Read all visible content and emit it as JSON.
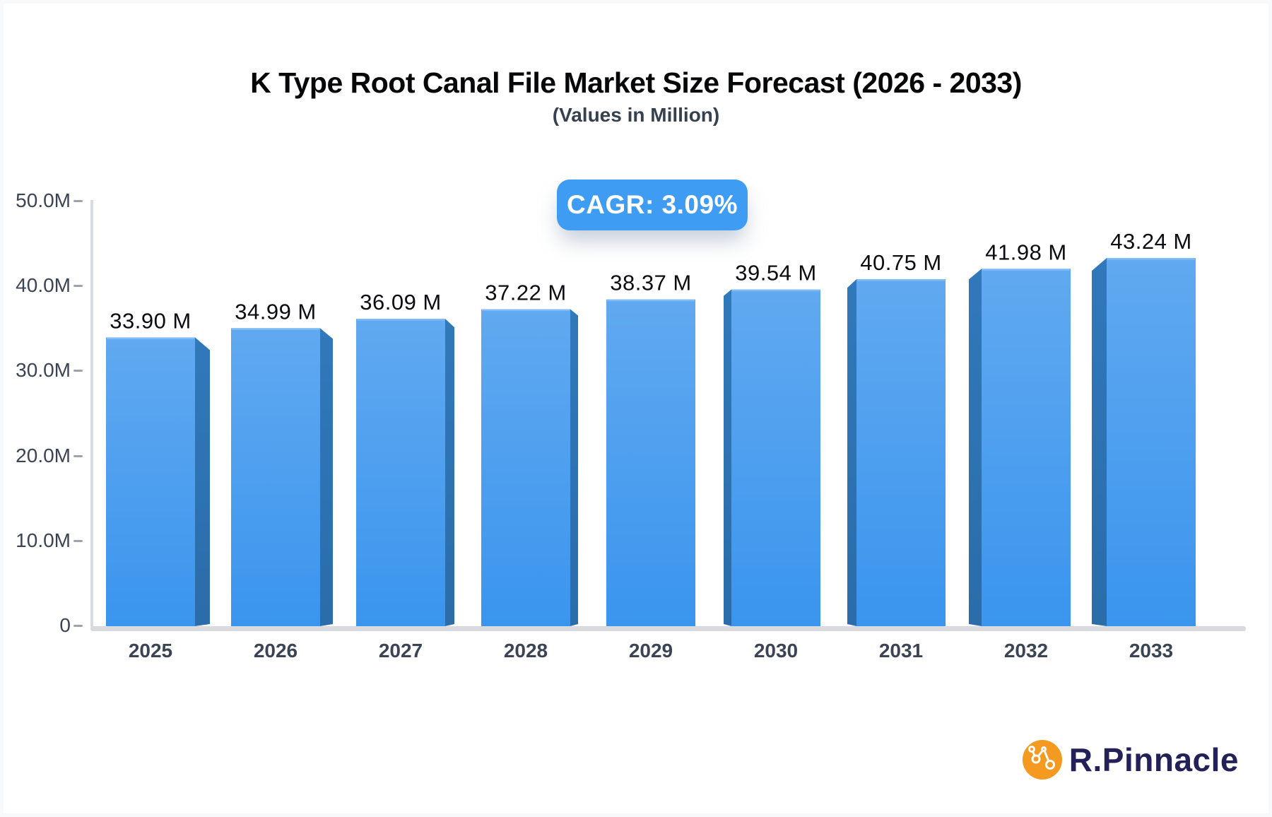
{
  "header": {
    "title": "K Type Root Canal File Market Size Forecast (2026 - 2033)",
    "subtitle": "(Values in Million)"
  },
  "badge": {
    "label": "CAGR: 3.09%",
    "bg_color": "#3e9cf2",
    "text_color": "#ffffff"
  },
  "chart_data": {
    "type": "bar",
    "title": "K Type Root Canal File Market Size Forecast (2026 - 2033)",
    "subtitle": "(Values in Million)",
    "categories": [
      "2025",
      "2026",
      "2027",
      "2028",
      "2029",
      "2030",
      "2031",
      "2032",
      "2033"
    ],
    "values": [
      33.9,
      34.99,
      36.09,
      37.22,
      38.37,
      39.54,
      40.75,
      41.98,
      43.24
    ],
    "value_labels": [
      "33.90 M",
      "34.99 M",
      "36.09 M",
      "37.22 M",
      "38.37 M",
      "39.54 M",
      "40.75 M",
      "41.98 M",
      "43.24 M"
    ],
    "unit": "Million",
    "ylim": [
      0,
      50
    ],
    "y_ticks": [
      {
        "label": "50.0M",
        "value": 50
      },
      {
        "label": "40.0M",
        "value": 40
      },
      {
        "label": "30.0M",
        "value": 30
      },
      {
        "label": "20.0M",
        "value": 20
      },
      {
        "label": "10.0M",
        "value": 10
      },
      {
        "label": "0",
        "value": 0
      }
    ],
    "grid": false,
    "legend": "none",
    "style": "3d-bars-center-perspective",
    "colors": {
      "bar_front_top": "#61a9f0",
      "bar_front_bottom": "#3a95ee",
      "bar_top_highlight": "#7fbbf4",
      "bar_side_top": "#3079bb",
      "bar_side_bottom": "#2b6ca9",
      "axis": "#d7dce2",
      "baseline": "#d9dade",
      "tick_text": "#3b4454",
      "value_text": "#0b0d11"
    }
  },
  "branding": {
    "name": "R.Pinnacle",
    "icon": "network-graph-icon",
    "icon_bg": "#f49a21",
    "icon_fg": "#ffffff",
    "text_color": "#232157"
  }
}
